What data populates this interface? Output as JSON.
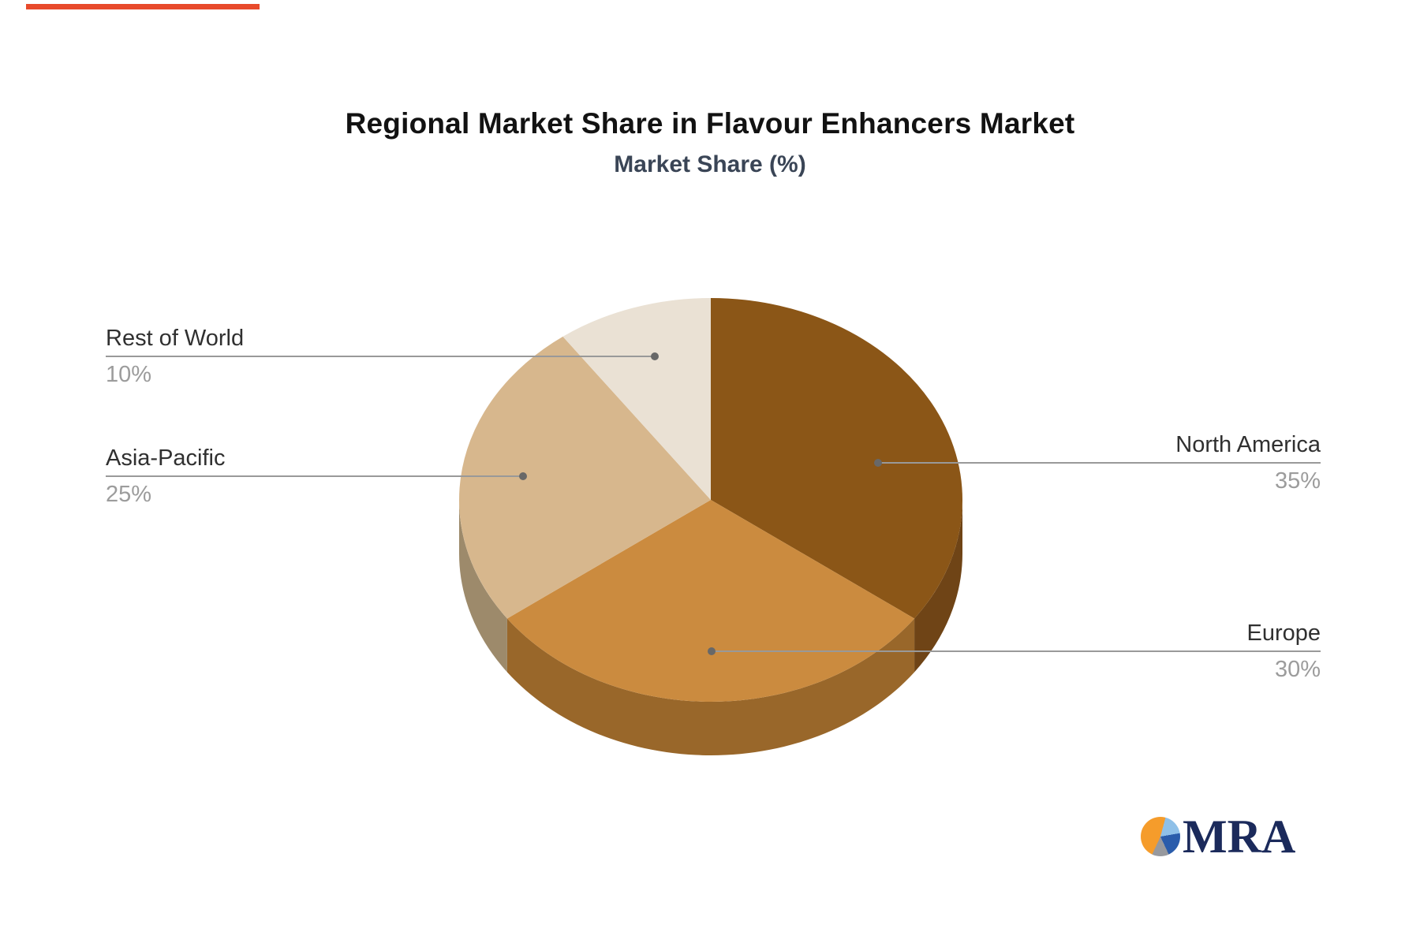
{
  "title": "Regional Market Share in Flavour Enhancers Market",
  "subtitle": "Market Share (%)",
  "logo": {
    "text": "MRA"
  },
  "chart_data": {
    "type": "pie",
    "title": "Regional Market Share in Flavour Enhancers Market",
    "subtitle": "Market Share (%)",
    "unit": "percent",
    "style": "3d-pie",
    "start_position": "top",
    "direction": "clockwise",
    "legend_position": "none",
    "slices": [
      {
        "label": "North America",
        "value": 35,
        "pct_label": "35%",
        "color": "#8B5617",
        "side_color": "#6F4416",
        "label_side": "right"
      },
      {
        "label": "Europe",
        "value": 30,
        "pct_label": "30%",
        "color": "#CB8B3F",
        "side_color": "#99672A",
        "label_side": "right"
      },
      {
        "label": "Asia-Pacific",
        "value": 25,
        "pct_label": "25%",
        "color": "#D7B78D",
        "side_color": "#9D8A6B",
        "label_side": "left"
      },
      {
        "label": "Rest of World",
        "value": 10,
        "pct_label": "10%",
        "color": "#EAE1D4",
        "side_color": "#C9BCA6",
        "label_side": "left"
      }
    ],
    "label_color": "#303030",
    "pct_color": "#9C9C9C",
    "leader_line_color": "#999999",
    "leader_dot_color": "#686868"
  }
}
